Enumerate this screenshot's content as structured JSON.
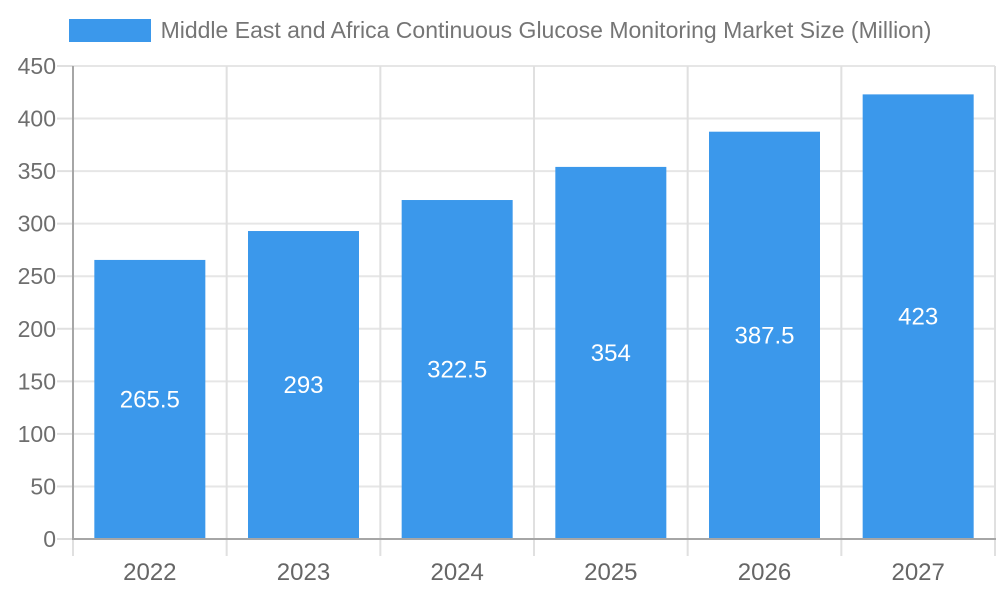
{
  "chart_data": {
    "type": "bar",
    "title": "Middle East and Africa Continuous Glucose Monitoring Market Size (Million)",
    "categories": [
      "2022",
      "2023",
      "2024",
      "2025",
      "2026",
      "2027"
    ],
    "values": [
      265.5,
      293,
      322.5,
      354,
      387.5,
      423
    ],
    "value_labels": [
      "265.5",
      "293",
      "322.5",
      "354",
      "387.5",
      "423"
    ],
    "ytick_labels": [
      "0",
      "50",
      "100",
      "150",
      "200",
      "250",
      "300",
      "350",
      "400",
      "450"
    ],
    "ylim": [
      0,
      450
    ],
    "ytick_step": 50,
    "xlabel": "",
    "ylabel": "",
    "grid": true,
    "legend_position": "top",
    "value_label_position": "inside-center"
  },
  "legend": {
    "label": "Middle East and Africa Continuous Glucose Monitoring Market Size (Million)"
  },
  "colors": {
    "bar": "#3B98EB",
    "bar_value_label": "#FFFFFF",
    "axis_line": "#A6A6A6",
    "h_grid_line": "#E6E6E6",
    "v_grid_line": "#E0E0E0",
    "tick_mark": "#E0E0E0",
    "y_tick_text": "#6E6E6E",
    "x_tick_text": "#666666",
    "legend_text": "#757575",
    "background": "#FFFFFF"
  }
}
